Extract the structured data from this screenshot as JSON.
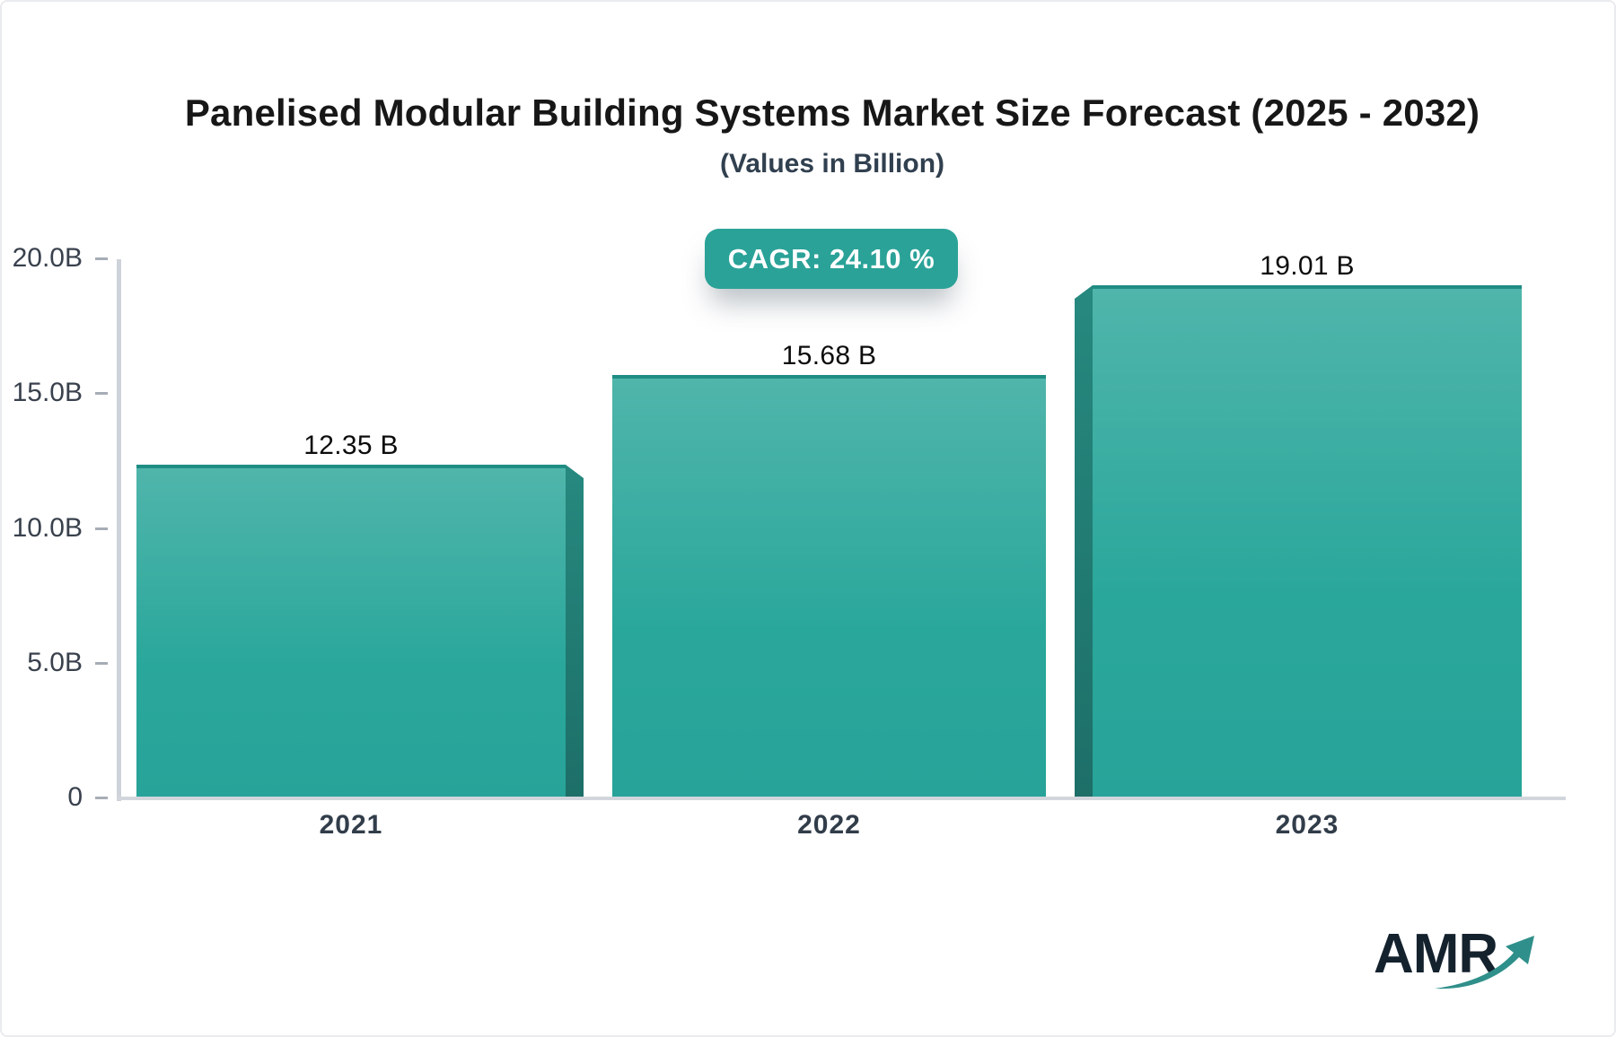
{
  "page": {
    "title": "Panelised Modular Building Systems Market Size Forecast (2025 - 2032)",
    "subtitle": "(Values in Billion)",
    "cagr_badge_label": "CAGR: 24.10 %",
    "logo_text": "AMR"
  },
  "colors": {
    "bar_face_top": "#50b5ab",
    "bar_face_bottom": "#28a399",
    "bar_top_edge": "#1f8d84",
    "bar_side_dark": "#1d6f68",
    "badge_background": "#2aa298",
    "badge_text": "#ffffff",
    "axis_line": "#d2d6dc",
    "tick_dash": "#a7adb6",
    "axis_text": "#39414d",
    "title_text": "#171717",
    "subtitle_text": "#31404f",
    "logo_text": "#14222e",
    "logo_arrow": "#2f8f8a"
  },
  "chart_data": {
    "type": "bar",
    "title": "Panelised Modular Building Systems Market Size Forecast (2025 - 2032)",
    "subtitle": "(Values in Billion)",
    "unit": "Billion",
    "cagr_percent": 24.1,
    "categories": [
      "2021",
      "2022",
      "2023"
    ],
    "values": [
      12.35,
      15.68,
      19.01
    ],
    "value_labels": [
      "12.35 B",
      "15.68 B",
      "19.01 B"
    ],
    "xlabel": "",
    "ylabel": "",
    "ylim": [
      0,
      20
    ],
    "yticks": [
      {
        "label": "20.0B",
        "value": 20
      },
      {
        "label": "15.0B",
        "value": 15
      },
      {
        "label": "10.0B",
        "value": 10
      },
      {
        "label": "5.0B",
        "value": 5
      },
      {
        "label": "0",
        "value": 0
      }
    ],
    "grid": false,
    "legend": false,
    "bar_style": "3d-extruded-teal"
  }
}
